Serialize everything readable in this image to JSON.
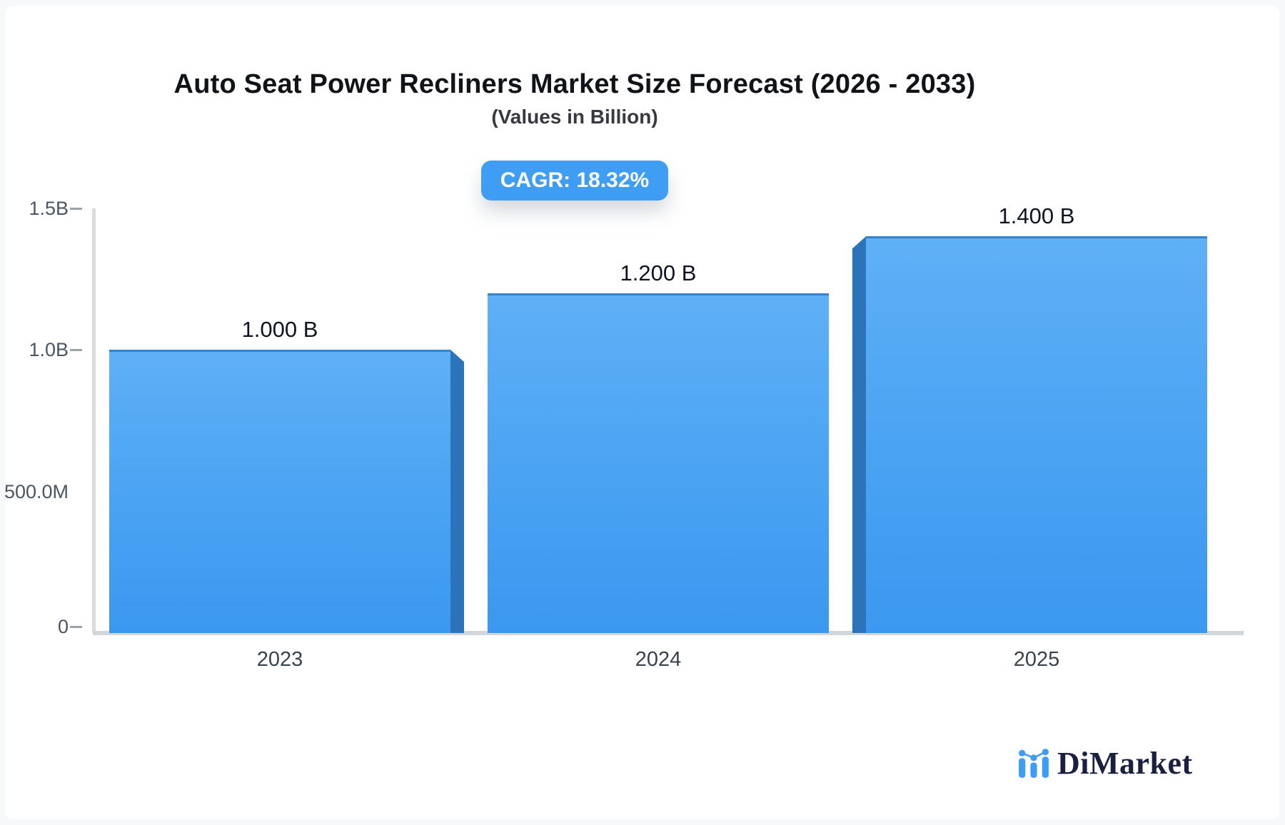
{
  "page": {
    "background": "#f7f8f9",
    "card_background": "#ffffff"
  },
  "header": {
    "title": "Auto Seat Power Recliners Market Size Forecast (2026 - 2033)",
    "subtitle": "(Values in Billion)",
    "cagr_badge": "CAGR: 18.32%"
  },
  "chart_data": {
    "type": "bar",
    "title": "Auto Seat Power Recliners Market Size Forecast (2026 - 2033)",
    "subtitle": "(Values in Billion)",
    "annotation": "CAGR: 18.32%",
    "categories": [
      "2023",
      "2024",
      "2025"
    ],
    "values": [
      1.0,
      1.2,
      1.4
    ],
    "value_labels": [
      "1.000 B",
      "1.200 B",
      "1.400 B"
    ],
    "ylim": [
      0,
      1.5
    ],
    "y_ticks": [
      {
        "label": "1.5B",
        "value": 1.5,
        "dash": true
      },
      {
        "label": "1.0B",
        "value": 1.0,
        "dash": true
      },
      {
        "label": "500.0M",
        "value": 0.5,
        "dash": false
      },
      {
        "label": "0",
        "value": 0,
        "dash": true
      }
    ],
    "grid": false,
    "legend": false,
    "bar_color_top": "#5fb0f6",
    "bar_color_bottom": "#3b98f0",
    "bar_side_color": "#2c74ba",
    "badge_color": "#3f9df3"
  },
  "branding": {
    "logo_text": "DiMarket",
    "logo_icon": "bar-line-chart-icon",
    "logo_icon_color": "#3d9cf6",
    "logo_text_color": "#1a2140"
  }
}
